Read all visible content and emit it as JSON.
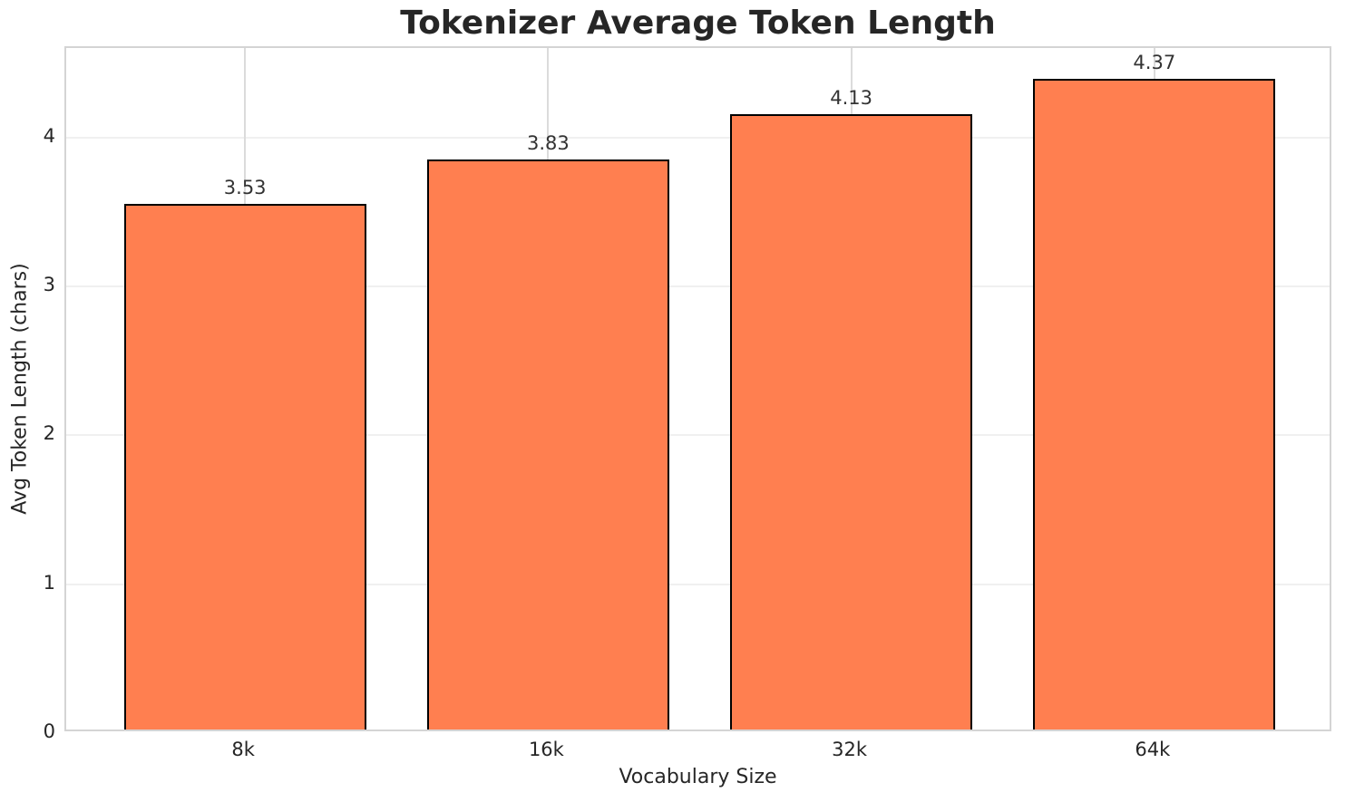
{
  "chart_data": {
    "type": "bar",
    "title": "Tokenizer Average Token Length",
    "xlabel": "Vocabulary Size",
    "ylabel": "Avg Token Length (chars)",
    "categories": [
      "8k",
      "16k",
      "32k",
      "64k"
    ],
    "values": [
      3.53,
      3.83,
      4.13,
      4.37
    ],
    "value_labels": [
      "3.53",
      "3.83",
      "4.13",
      "4.37"
    ],
    "ytick_labels": [
      "0",
      "1",
      "2",
      "3",
      "4"
    ],
    "ytick_values": [
      0,
      1,
      2,
      3,
      4
    ],
    "ylim": [
      0,
      4.6
    ],
    "grid": "on",
    "legend": "none",
    "colors": {
      "bar_fill": "#FF7F50",
      "bar_edge": "#000000",
      "text": "#262626",
      "spine": "#D4D4D4",
      "h_gridline": "#F0F0F0",
      "v_gridline": "#DBDBDB",
      "background": "#FFFFFF"
    }
  }
}
